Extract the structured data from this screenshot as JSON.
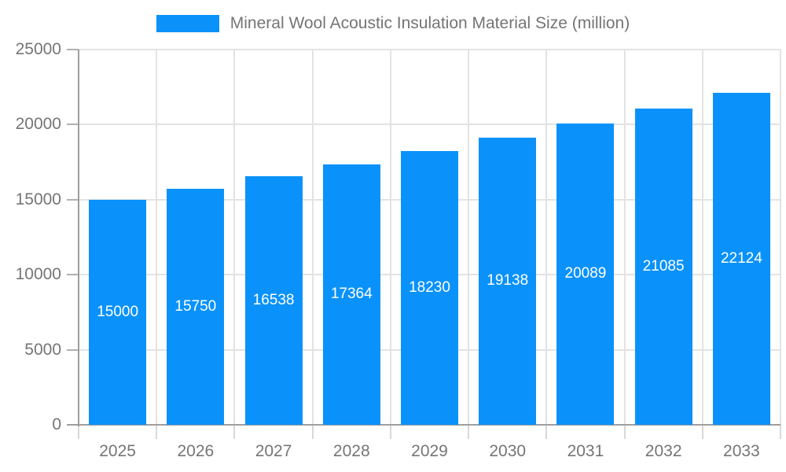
{
  "chart_data": {
    "type": "bar",
    "title": "Mineral Wool Acoustic Insulation Material Size (million)",
    "categories": [
      "2025",
      "2026",
      "2027",
      "2028",
      "2029",
      "2030",
      "2031",
      "2032",
      "2033"
    ],
    "values": [
      15000,
      15750,
      16538,
      17364,
      18230,
      19138,
      20089,
      21085,
      22124
    ],
    "xlabel": "",
    "ylabel": "",
    "ylim": [
      0,
      25000
    ],
    "yticks": [
      0,
      5000,
      10000,
      15000,
      20000,
      25000
    ],
    "ytick_labels": [
      "0",
      "5000",
      "10000",
      "15000",
      "20000",
      "25000"
    ],
    "grid": "on",
    "legend_position": "top-center",
    "value_labels": "inside-center-white"
  },
  "colors": {
    "bar": "#0a92fa",
    "value_label": "#ffffff",
    "axis_text": "#757575",
    "title_text": "#757575",
    "gridline": "#e3e3e3",
    "axis_line": "#9e9e9e",
    "x_tick": "#d9d9d9",
    "background": "#ffffff"
  }
}
